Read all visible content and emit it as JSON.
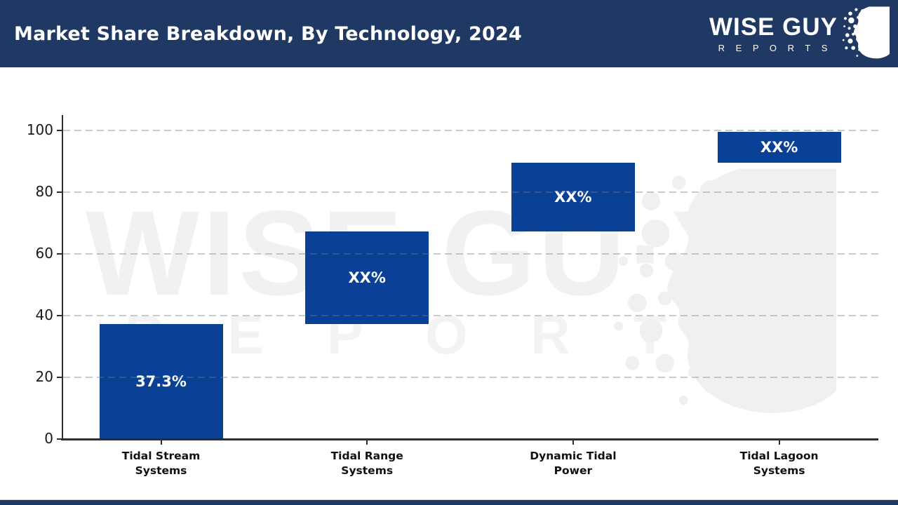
{
  "header": {
    "title": "Market Share Breakdown, By Technology, 2024",
    "bg_color": "#1f3864",
    "logo": {
      "wordmark": "WISE GUY",
      "subtext": "R E P O R T S"
    }
  },
  "watermark": {
    "line1": "WISE GU·Y",
    "line2": "R E P O R T S"
  },
  "footer": {
    "bar_color": "#1f3864"
  },
  "chart_data": {
    "type": "bar",
    "subtype": "waterfall",
    "title": "Market Share Breakdown, By Technology, 2024",
    "categories": [
      "Tidal Stream Systems",
      "Tidal Range Systems",
      "Dynamic Tidal Power",
      "Tidal Lagoon Systems"
    ],
    "category_lines": [
      [
        "Tidal Stream",
        "Systems"
      ],
      [
        "Tidal Range",
        "Systems"
      ],
      [
        "Dynamic Tidal",
        "Power"
      ],
      [
        "Tidal Lagoon",
        "Systems"
      ]
    ],
    "bars": [
      {
        "category": "Tidal Stream Systems",
        "start": 0,
        "end": 37.3,
        "label": "37.3%"
      },
      {
        "category": "Tidal Range Systems",
        "start": 37.3,
        "end": 67.3,
        "label": "XX%"
      },
      {
        "category": "Dynamic Tidal Power",
        "start": 67.3,
        "end": 89.6,
        "label": "XX%"
      },
      {
        "category": "Tidal Lagoon Systems",
        "start": 89.6,
        "end": 99.6,
        "label": "XX%"
      }
    ],
    "yticks": [
      0,
      20,
      40,
      60,
      80,
      100
    ],
    "ylim": [
      0,
      105
    ],
    "bar_color": "#0a4197",
    "label_color": "#ffffff",
    "axis_color": "#2e2e2e",
    "grid": true,
    "gridline_style": "dashed",
    "legend": false
  }
}
